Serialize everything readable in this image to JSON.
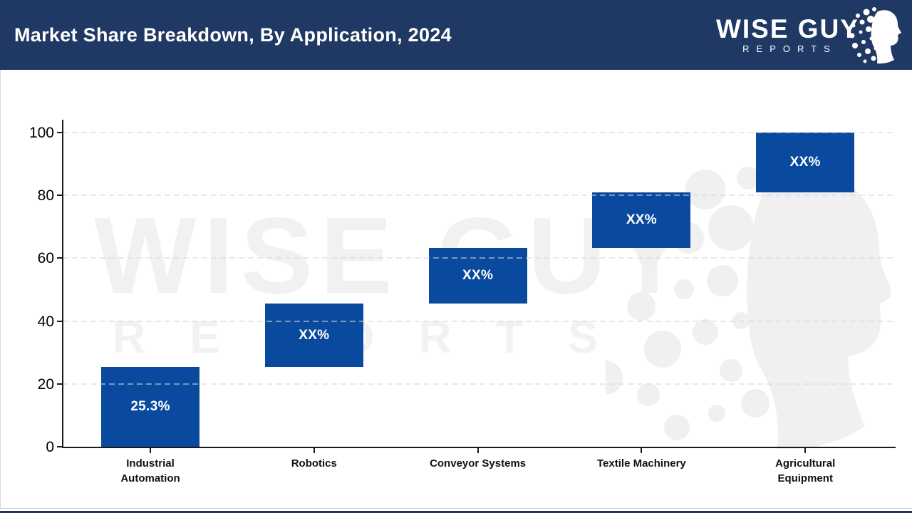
{
  "header": {
    "title": "Market Share Breakdown, By Application, 2024",
    "logo": {
      "line1": "WISE GUY",
      "line2": "REPORTS"
    },
    "bg_color": "#1f3864"
  },
  "watermark": {
    "line1": "WISE GUY",
    "line2": "REPORTS"
  },
  "chart_data": {
    "type": "bar",
    "subtype": "waterfall",
    "title": "Market Share Breakdown, By Application, 2024",
    "categories": [
      "Industrial Automation",
      "Robotics",
      "Conveyor Systems",
      "Textile Machinery",
      "Agricultural Equipment"
    ],
    "segments": [
      {
        "category": "Industrial Automation",
        "start": 0,
        "end": 25.3,
        "label": "25.3%"
      },
      {
        "category": "Robotics",
        "start": 25.3,
        "end": 45.5,
        "label": "XX%"
      },
      {
        "category": "Conveyor Systems",
        "start": 45.5,
        "end": 63.3,
        "label": "XX%"
      },
      {
        "category": "Textile Machinery",
        "start": 63.3,
        "end": 81.0,
        "label": "XX%"
      },
      {
        "category": "Agricultural Equipment",
        "start": 81.0,
        "end": 100,
        "label": "XX%"
      }
    ],
    "xlabel": "",
    "ylabel": "",
    "ylim": [
      0,
      105
    ],
    "yticks": [
      0,
      20,
      40,
      60,
      80,
      100
    ],
    "grid": "horizontal-dashed",
    "legend": "none",
    "bar_color": "#0a4a9e",
    "bar_label_color": "#ffffff"
  },
  "colors": {
    "header_bg": "#1f3864",
    "bar": "#0a4a9e",
    "axis": "#1a1a1a",
    "watermark": "#f1f1f1"
  }
}
